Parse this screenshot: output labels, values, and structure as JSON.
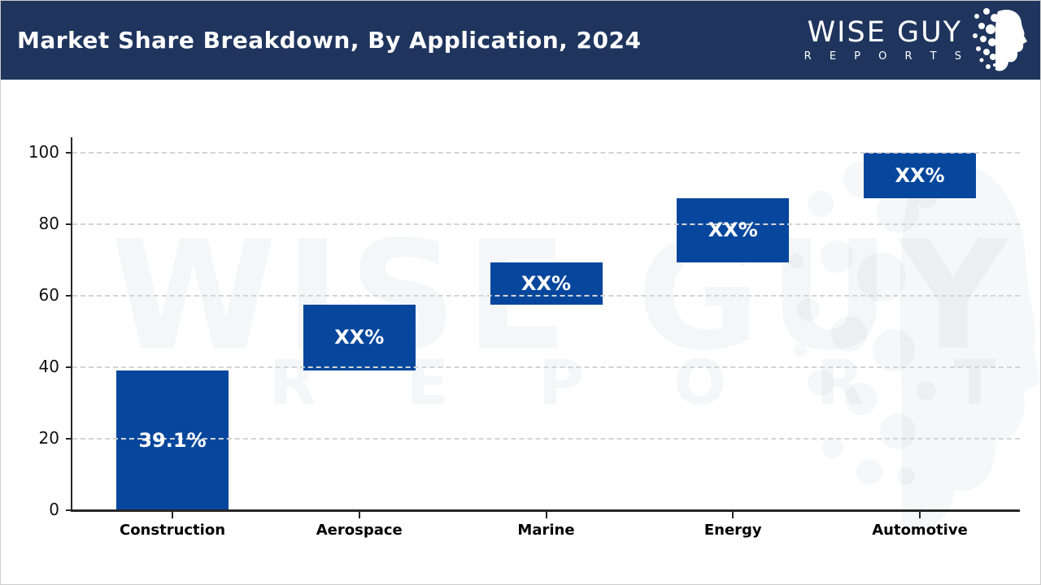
{
  "header": {
    "title": "Market Share Breakdown, By Application, 2024",
    "bg_color": "#1f355e",
    "text_color": "#ffffff",
    "logo": {
      "line1": "WISE GUY",
      "line2": "R E P O R T S"
    }
  },
  "watermark": {
    "line1": "WISE GUY",
    "line2": "R E P O R T S"
  },
  "chart_data": {
    "type": "bar",
    "subtype": "waterfall",
    "title": "Market Share Breakdown, By Application, 2024",
    "xlabel": "",
    "ylabel": "",
    "categories": [
      "Construction",
      "Aerospace",
      "Marine",
      "Energy",
      "Automotive"
    ],
    "series": [
      {
        "name": "Market Share",
        "segments": [
          {
            "category": "Construction",
            "start": 0,
            "end": 39.1,
            "label": "39.1%"
          },
          {
            "category": "Aerospace",
            "start": 39.1,
            "end": 57.5,
            "label": "XX%"
          },
          {
            "category": "Marine",
            "start": 57.5,
            "end": 69.3,
            "label": "XX%"
          },
          {
            "category": "Energy",
            "start": 69.3,
            "end": 87.3,
            "label": "XX%"
          },
          {
            "category": "Automotive",
            "start": 87.3,
            "end": 100,
            "label": "XX%"
          }
        ]
      }
    ],
    "ylim": [
      0,
      100
    ],
    "yticks": [
      0,
      20,
      40,
      60,
      80,
      100
    ],
    "grid": "horizontal-dashed-above-bars",
    "legend": "none",
    "bar_color": "#06479d",
    "bar_label_color": "#ffffff",
    "axis_color": "#262626",
    "grid_color": "#d4d4d4"
  }
}
